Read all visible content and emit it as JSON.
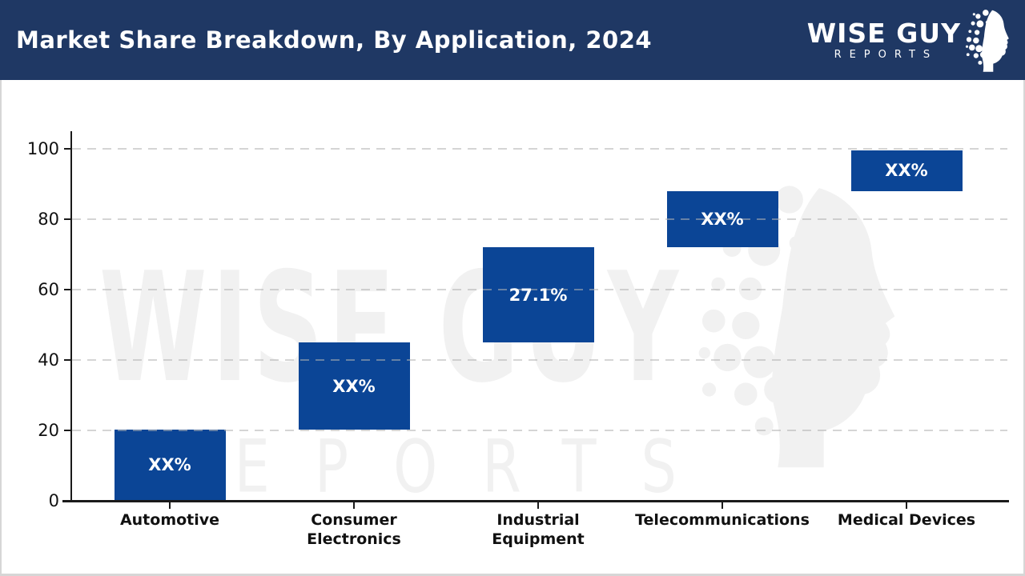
{
  "header": {
    "title": "Market Share Breakdown, By Application, 2024",
    "logo": {
      "name": "WISE GUY",
      "subtitle": "REPORTS"
    }
  },
  "watermark": {
    "line1": "WISE GUY",
    "line2": "REPORTS"
  },
  "colors": {
    "header_bg": "#1f3864",
    "bar": "#0b4596",
    "axis": "#1a1a1a",
    "gridline": "#d9d9d9",
    "bar_label_text": "#ffffff",
    "tick_text": "#111111",
    "watermark": "#f1f1f1",
    "page_border": "#d6d6d6"
  },
  "chart_data": {
    "type": "bar",
    "subtype": "waterfall",
    "title": "Market Share Breakdown, By Application, 2024",
    "categories": [
      "Automotive",
      "Consumer\nElectronics",
      "Industrial\nEquipment",
      "Telecommunications",
      "Medical Devices"
    ],
    "segments": [
      {
        "category": "Automotive",
        "start": 0,
        "end": 20.3,
        "label": "XX%"
      },
      {
        "category": "Consumer Electronics",
        "start": 20.3,
        "end": 44.9,
        "label": "XX%"
      },
      {
        "category": "Industrial Equipment",
        "start": 44.9,
        "end": 72.0,
        "label": "27.1%"
      },
      {
        "category": "Telecommunications",
        "start": 72.0,
        "end": 88.0,
        "label": "XX%"
      },
      {
        "category": "Medical Devices",
        "start": 88.0,
        "end": 99.6,
        "label": "XX%"
      }
    ],
    "ylim": [
      0,
      100
    ],
    "yticks": [
      0,
      20,
      40,
      60,
      80,
      100
    ],
    "xlabel": "",
    "ylabel": "",
    "grid": "horizontal-dashed",
    "legend": "none"
  }
}
